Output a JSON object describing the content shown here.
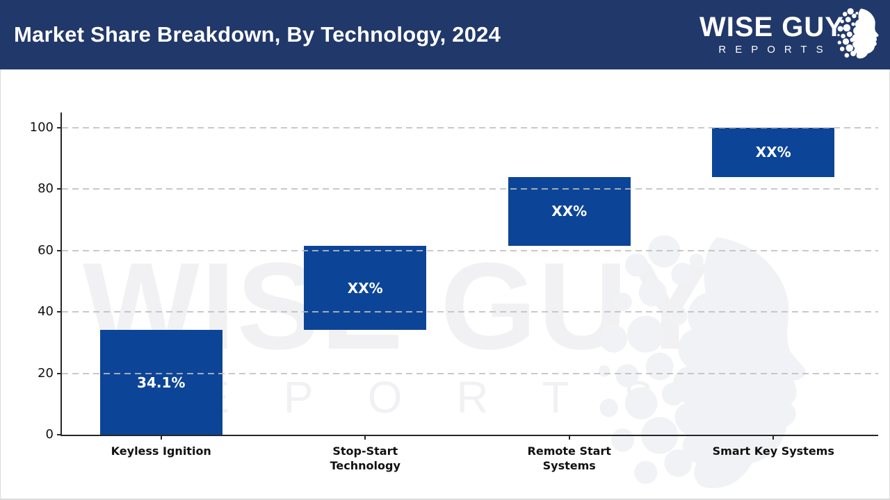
{
  "header": {
    "title": "Market Share Breakdown, By Technology, 2024",
    "background_color": "#21386a",
    "brand": {
      "name": "WISE GUY",
      "sub": "REPORTS"
    }
  },
  "watermark": {
    "line1": "WISE GUY",
    "line2": "REPORTS"
  },
  "chart_data": {
    "type": "bar",
    "subtype": "waterfall",
    "title": "Market Share Breakdown, By Technology, 2024",
    "categories": [
      "Keyless Ignition",
      "Stop-Start Technology",
      "Remote Start Systems",
      "Smart Key Systems"
    ],
    "categories_display": [
      [
        "Keyless Ignition"
      ],
      [
        "Stop-Start",
        "Technology"
      ],
      [
        "Remote Start",
        "Systems"
      ],
      [
        "Smart Key Systems"
      ]
    ],
    "segments": [
      {
        "category": "Keyless Ignition",
        "start": 0,
        "end": 34.1,
        "label": "34.1%"
      },
      {
        "category": "Stop-Start Technology",
        "start": 34.1,
        "end": 61.5,
        "label": "XX%"
      },
      {
        "category": "Remote Start Systems",
        "start": 61.5,
        "end": 84,
        "label": "XX%"
      },
      {
        "category": "Smart Key Systems",
        "start": 84,
        "end": 100,
        "label": "XX%"
      }
    ],
    "y_ticks": [
      0,
      20,
      40,
      60,
      80,
      100
    ],
    "y_tick_labels": [
      "0",
      "20",
      "40",
      "60",
      "80",
      "100"
    ],
    "ylim": [
      0,
      100
    ],
    "xlabel": "",
    "ylabel": "",
    "grid": "horizontal dashed, drawn over bars",
    "legend": "none",
    "bar_color": "#0c4597",
    "bar_label_color": "#ffffff",
    "axis_color": "#262626",
    "gridline_color": "#bebebe"
  }
}
